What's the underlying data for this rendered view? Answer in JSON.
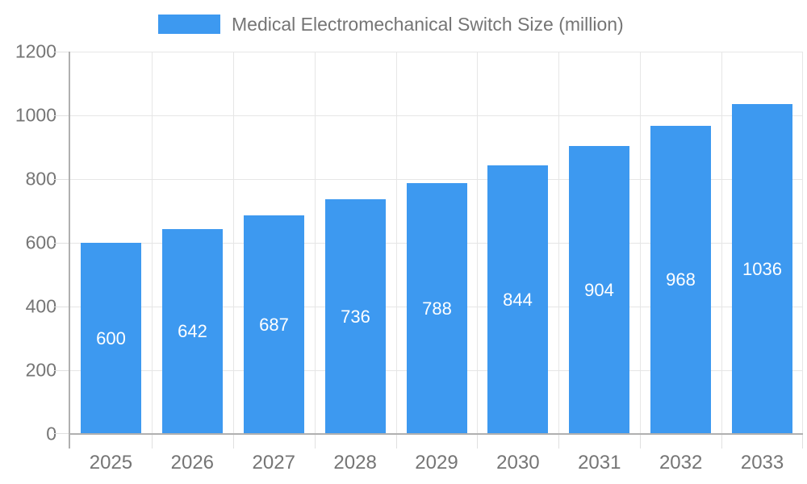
{
  "legend": {
    "label": "Medical Electromechanical Switch Size (million)"
  },
  "chart_data": {
    "type": "bar",
    "title": "Medical Electromechanical Switch Size (million)",
    "categories": [
      "2025",
      "2026",
      "2027",
      "2028",
      "2029",
      "2030",
      "2031",
      "2032",
      "2033"
    ],
    "series": [
      {
        "name": "Medical Electromechanical Switch Size (million)",
        "values": [
          600,
          642,
          687,
          736,
          788,
          844,
          904,
          968,
          1036
        ]
      }
    ],
    "bar_labels": [
      "600",
      "642",
      "687",
      "736",
      "788",
      "844",
      "904",
      "968",
      "1036"
    ],
    "xlabel": "",
    "ylabel": "",
    "ylim": [
      0,
      1200
    ],
    "yticks": [
      0,
      200,
      400,
      600,
      800,
      1000,
      1200
    ],
    "grid": true,
    "legend_position": "top",
    "colors": {
      "bar": "#3D99F0",
      "bar_label": "#FFFFFF",
      "axis_text": "#757575",
      "grid_line": "#E6E6E6",
      "tick_line": "#E0E0E0",
      "axis_line": "#B0B0B0"
    }
  }
}
